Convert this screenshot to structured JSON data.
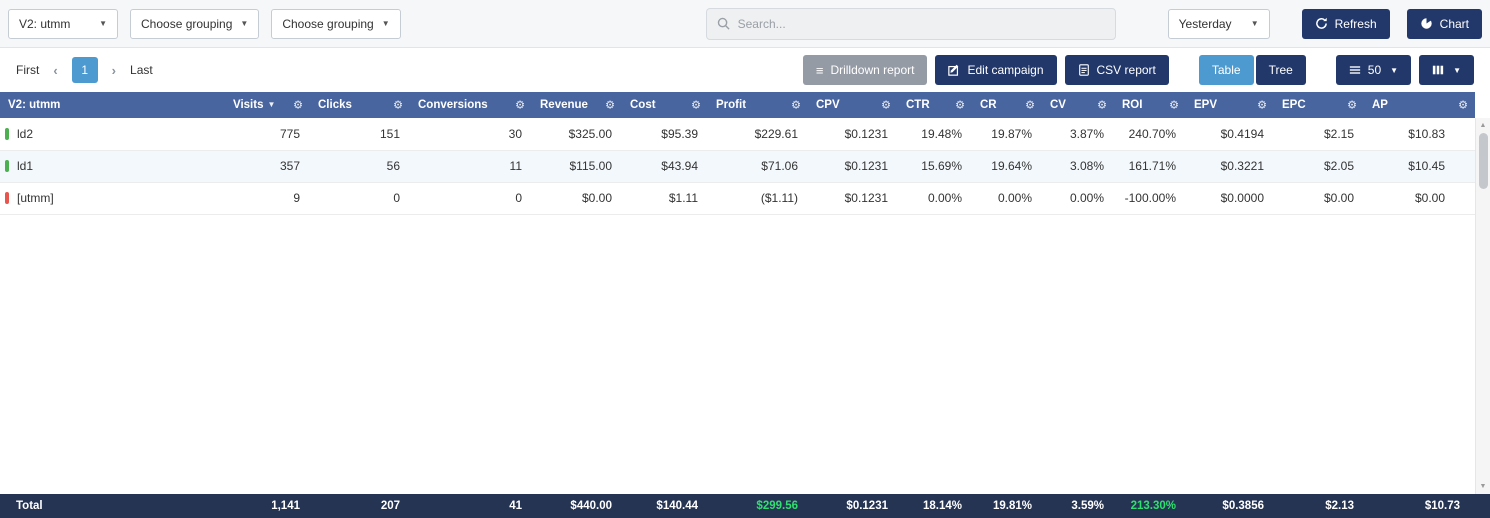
{
  "toolbar": {
    "campaign_select": "V2: utmm",
    "grouping1": "Choose grouping",
    "grouping2": "Choose grouping",
    "search_placeholder": "Search...",
    "date_range": "Yesterday",
    "refresh_label": "Refresh",
    "chart_label": "Chart"
  },
  "pagination": {
    "first": "First",
    "page": "1",
    "last": "Last"
  },
  "actions": {
    "drilldown": "Drilldown report",
    "edit_campaign": "Edit campaign",
    "csv": "CSV report",
    "table": "Table",
    "tree": "Tree",
    "page_size": "50"
  },
  "icons": {
    "gear": "⚙",
    "sort_desc": "▼",
    "caret_down": "▼",
    "chevron_left": "‹",
    "chevron_right": "›",
    "scroll_up": "▲",
    "scroll_down": "▼",
    "list": "≡"
  },
  "colors": {
    "header_blue": "#48659f",
    "footer_navy": "#263453",
    "navy_button": "#22386b",
    "light_blue": "#4d9ad0",
    "gray_button": "#959ba5",
    "positive": "#28a745",
    "positive_bright": "#2ee06e",
    "negative": "#e8554d",
    "row_alt": "#f3f8fc",
    "status_green": "#4caf50",
    "status_red": "#e8554d"
  },
  "table": {
    "columns": [
      {
        "label": "V2: utmm",
        "gear": false
      },
      {
        "label": "Visits",
        "gear": true,
        "sorted": true
      },
      {
        "label": "Clicks",
        "gear": true
      },
      {
        "label": "Conversions",
        "gear": true
      },
      {
        "label": "Revenue",
        "gear": true
      },
      {
        "label": "Cost",
        "gear": true
      },
      {
        "label": "Profit",
        "gear": true
      },
      {
        "label": "CPV",
        "gear": true
      },
      {
        "label": "CTR",
        "gear": true
      },
      {
        "label": "CR",
        "gear": true
      },
      {
        "label": "CV",
        "gear": true
      },
      {
        "label": "ROI",
        "gear": true
      },
      {
        "label": "EPV",
        "gear": true
      },
      {
        "label": "EPC",
        "gear": true
      },
      {
        "label": "AP",
        "gear": true
      }
    ],
    "rows": [
      {
        "status": "green",
        "name": "ld2",
        "values": [
          "775",
          "151",
          "30",
          "$325.00",
          "$95.39",
          "$229.61",
          "$0.1231",
          "19.48%",
          "19.87%",
          "3.87%",
          "240.70%",
          "$0.4194",
          "$2.15",
          "$10.83"
        ]
      },
      {
        "status": "green",
        "name": "ld1",
        "values": [
          "357",
          "56",
          "11",
          "$115.00",
          "$43.94",
          "$71.06",
          "$0.1231",
          "15.69%",
          "19.64%",
          "3.08%",
          "161.71%",
          "$0.3221",
          "$2.05",
          "$10.45"
        ]
      },
      {
        "status": "red",
        "name": "[utmm]",
        "values": [
          "9",
          "0",
          "0",
          "$0.00",
          "$1.11",
          "($1.11)",
          "$0.1231",
          "0.00%",
          "0.00%",
          "0.00%",
          "-100.00%",
          "$0.0000",
          "$0.00",
          "$0.00"
        ]
      }
    ],
    "total": {
      "label": "Total",
      "values": [
        "1,141",
        "207",
        "41",
        "$440.00",
        "$140.44",
        "$299.56",
        "$0.1231",
        "18.14%",
        "19.81%",
        "3.59%",
        "213.30%",
        "$0.3856",
        "$2.13",
        "$10.73"
      ]
    }
  }
}
